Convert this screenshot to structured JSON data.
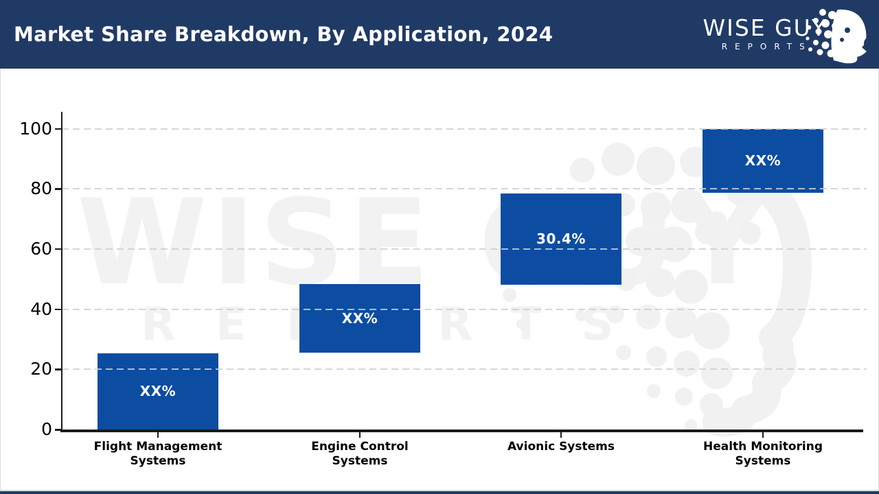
{
  "header": {
    "logo": {
      "wordmark": "WISE GUY",
      "subtext": "REPORTS"
    }
  },
  "watermark": {
    "wordmark": "WISE GUY",
    "subtext": "REPORTS"
  },
  "colors": {
    "header_bg": "#203a66",
    "bar_blue": "#0c4da2",
    "grid_gray": "#cfcfcf",
    "axis_black": "#1a1a1a",
    "watermark_gray": "#f2f2f2",
    "bar_label_white": "#ffffff"
  },
  "chart_data": {
    "type": "bar",
    "variant": "floating-waterfall",
    "title": "Market Share Breakdown, By Application, 2024",
    "categories": [
      "Flight Management Systems",
      "Engine Control Systems",
      "Avionic Systems",
      "Health Monitoring Systems"
    ],
    "category_label_lines": [
      [
        "Flight Management",
        "Systems"
      ],
      [
        "Engine Control",
        "Systems"
      ],
      [
        "Avionic Systems"
      ],
      [
        "Health Monitoring",
        "Systems"
      ]
    ],
    "segments": [
      {
        "start": 0,
        "end": 25.4,
        "label": "XX%"
      },
      {
        "start": 25.5,
        "end": 48.3,
        "label": "XX%"
      },
      {
        "start": 48.1,
        "end": 78.5,
        "label": "30.4%"
      },
      {
        "start": 78.7,
        "end": 100,
        "label": "XX%"
      }
    ],
    "ylim": [
      0,
      100
    ],
    "yticks": [
      0,
      20,
      40,
      60,
      80,
      100
    ],
    "grid": "dashed-horizontal",
    "legend": "none"
  }
}
